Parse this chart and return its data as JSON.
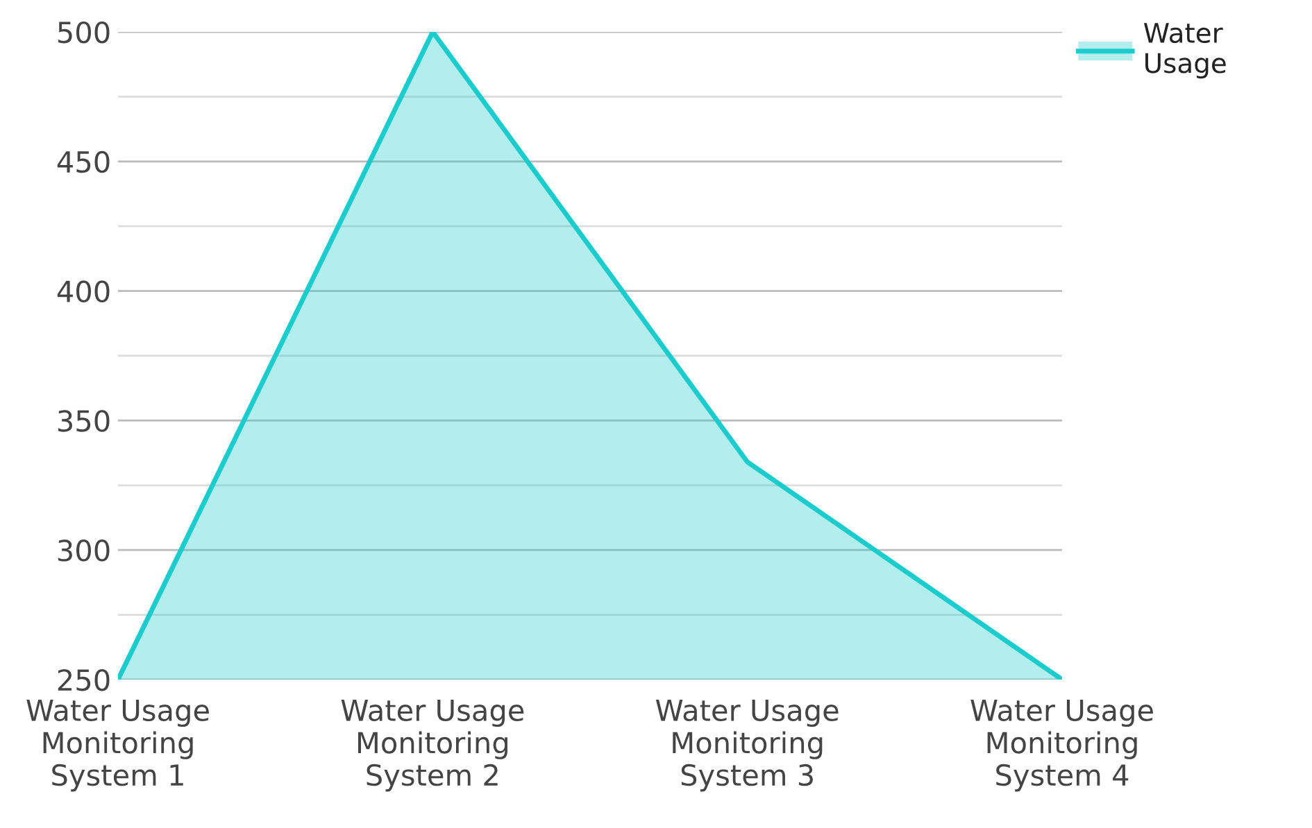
{
  "chart_data": {
    "type": "area",
    "categories": [
      "Water Usage Monitoring System 1",
      "Water Usage Monitoring System 2",
      "Water Usage Monitoring System 3",
      "Water Usage Monitoring System 4"
    ],
    "series": [
      {
        "name": "Water Usage",
        "color": "#1ccccc",
        "values": [
          250,
          500,
          334,
          250
        ]
      }
    ],
    "ylim": [
      250,
      500
    ],
    "yticks": [
      250,
      {
        "value": 275,
        "label": null
      },
      300,
      {
        "value": 325,
        "label": null
      },
      350,
      {
        "value": 375,
        "label": null
      },
      400,
      {
        "value": 425,
        "label": null
      },
      450,
      {
        "value": 475,
        "label": null
      },
      500
    ],
    "grid": "y",
    "legend": "top right"
  }
}
